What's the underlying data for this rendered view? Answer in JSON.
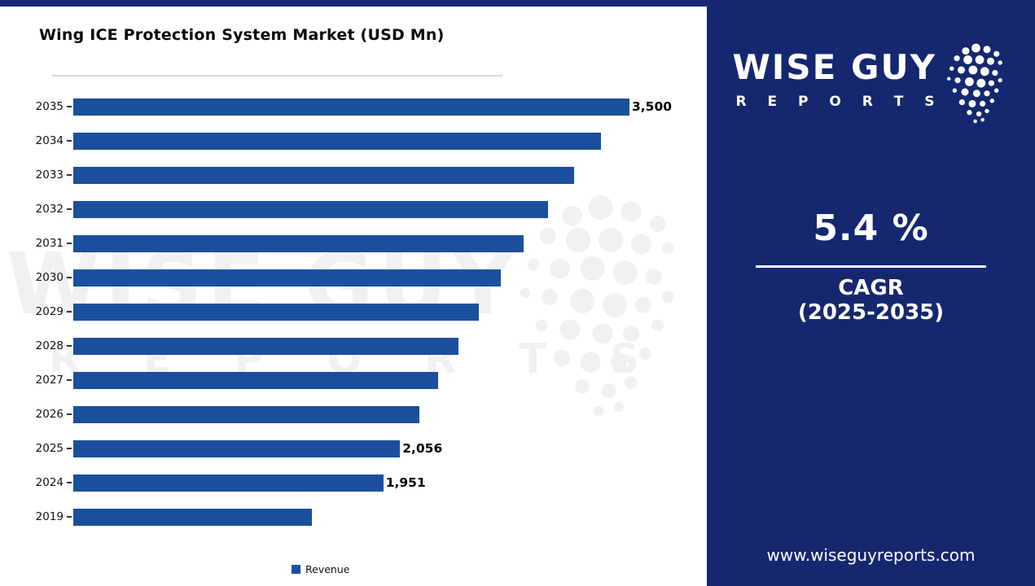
{
  "title": "Wing ICE Protection System Market (USD Mn)",
  "legend": {
    "label": "Revenue"
  },
  "watermark": {
    "line1": "WISE GUY",
    "line2": "R E P O R T S"
  },
  "panel": {
    "logo_line1": "WISE GUY",
    "logo_line2": "R E P O R T S",
    "cagr_value": "5.4 %",
    "cagr_label1": "CAGR",
    "cagr_label2": "(2025-2035)",
    "website": "www.wiseguyreports.com"
  },
  "colors": {
    "bar": "#1b4f9e",
    "panel_bg": "#15276f",
    "top_strip": "#15276f"
  },
  "chart_data": {
    "type": "bar",
    "orientation": "horizontal",
    "title": "Wing ICE Protection System Market (USD Mn)",
    "xlabel": "",
    "ylabel": "",
    "categories": [
      "2035",
      "2034",
      "2033",
      "2032",
      "2031",
      "2030",
      "2029",
      "2028",
      "2027",
      "2026",
      "2025",
      "2024",
      "2019"
    ],
    "values": [
      3500,
      3321,
      3151,
      2989,
      2836,
      2691,
      2553,
      2422,
      2298,
      2180,
      2056,
      1951,
      1500
    ],
    "value_labels": {
      "2035": "3,500",
      "2025": "2,056",
      "2024": "1,951"
    },
    "xlim": [
      0,
      3500
    ],
    "grid": false,
    "legend": [
      "Revenue"
    ],
    "legend_position": "bottom"
  }
}
